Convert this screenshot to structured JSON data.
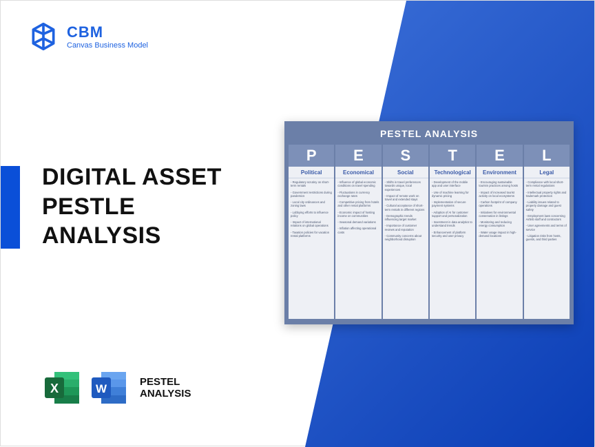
{
  "brand": {
    "name": "CBM",
    "tagline": "Canvas Business Model"
  },
  "title_lines": [
    "DIGITAL ASSET",
    "PESTLE",
    "ANALYSIS"
  ],
  "footer_label_lines": [
    "PESTEL",
    "ANALYSIS"
  ],
  "colors": {
    "brand_blue": "#1e62e0",
    "accent_blue": "#0a4fd8",
    "bg_grad_start": "#3b6fd8",
    "bg_grad_end": "#0a3db5",
    "card_bg": "#6b7fa8",
    "col_bg": "#eef0f5",
    "letter_bg": "#7d90b8",
    "cat_color": "#3a5aa8",
    "item_color": "#4a5670",
    "excel_green": "#1e7e46",
    "word_blue": "#2b5fc9"
  },
  "pestel": {
    "title": "PESTEL ANALYSIS",
    "columns": [
      {
        "letter": "P",
        "category": "Political",
        "items": [
          "Regulatory scrutiny on short-term rentals",
          "Government restrictions during pandemics",
          "Local city ordinances and zoning laws",
          "Lobbying efforts to influence policy",
          "Impact of international relations on global operations",
          "Taxation policies for vacation rental platforms"
        ]
      },
      {
        "letter": "E",
        "category": "Economical",
        "items": [
          "Influence of global economic conditions on travel spending",
          "Fluctuations in currency exchange rates",
          "Competitive pricing from hotels and other rental platforms",
          "Economic impact of hosting income on communities",
          "Seasonal demand variations",
          "Inflation affecting operational costs"
        ]
      },
      {
        "letter": "S",
        "category": "Social",
        "items": [
          "Shifts in travel preferences towards unique, local experiences",
          "Impact of remote work on travel and extended stays",
          "Cultural acceptance of short-term rentals in different regions",
          "Demographic trends influencing target market",
          "Importance of customer reviews and reputation",
          "Community concerns about neighborhood disruption"
        ]
      },
      {
        "letter": "T",
        "category": "Technological",
        "items": [
          "Development of the mobile app and user interface",
          "Use of machine learning for dynamic pricing",
          "Implementation of secure payment systems",
          "Adoption of AI for customer support and personalization",
          "Investment in data analytics to understand trends",
          "Enhancement of platform security and user privacy"
        ]
      },
      {
        "letter": "E",
        "category": "Environment",
        "items": [
          "Encouraging sustainable tourism practices among hosts",
          "Impact of increased tourist activity on local ecosystems",
          "Carbon footprint of company operations",
          "Initiatives for environmental conservation in listings",
          "Monitoring and reducing energy consumption",
          "Water usage impact in high-demand locations"
        ]
      },
      {
        "letter": "L",
        "category": "Legal",
        "items": [
          "Compliance with local short-term rental regulations",
          "Intellectual property rights and trademark protection",
          "Liability issues related to property damage and guest safety",
          "Employment laws concerning Airbnb staff and contractors",
          "User agreements and terms of service",
          "Litigation risks from hosts, guests, and third parties"
        ]
      }
    ]
  }
}
